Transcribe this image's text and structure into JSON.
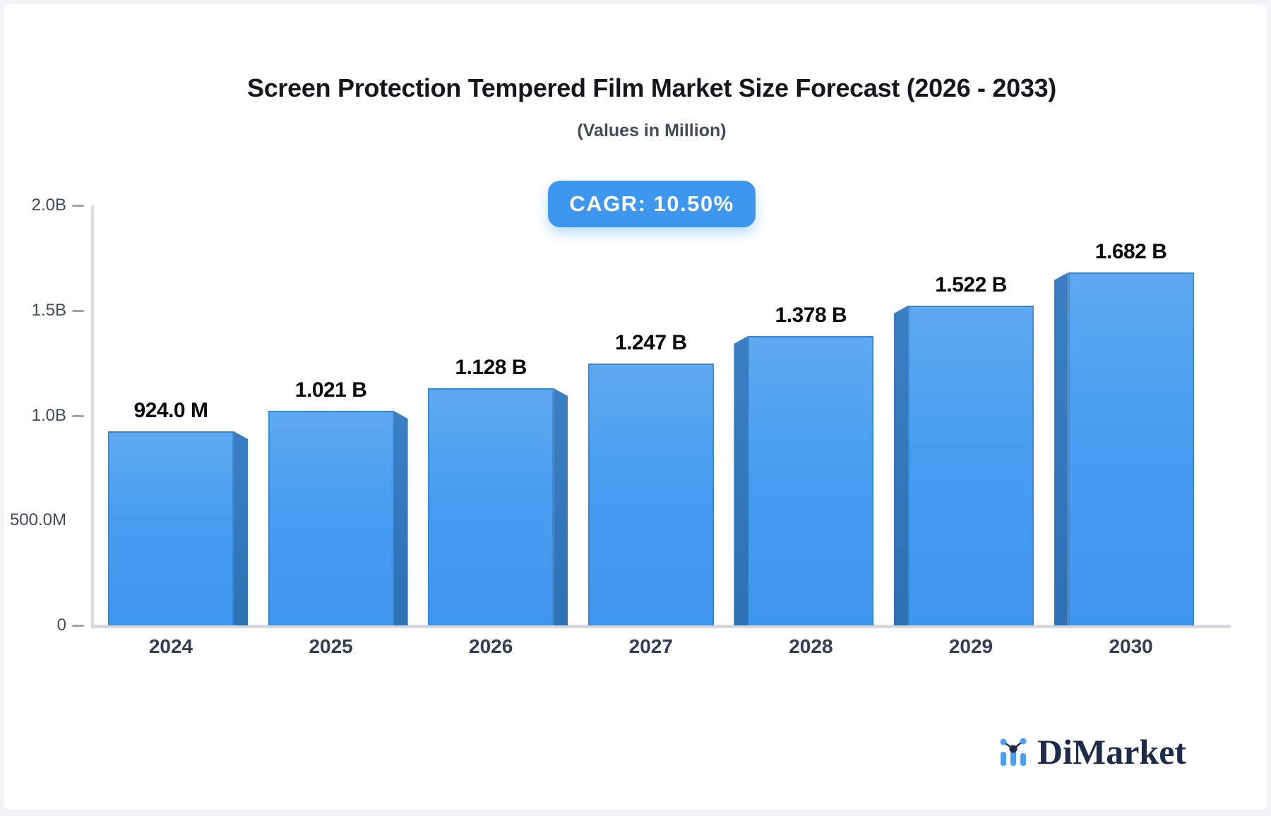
{
  "title": "Screen Protection Tempered Film Market Size Forecast (2026 - 2033)",
  "subtitle": "(Values in Million)",
  "badge": {
    "label": "CAGR: 10.50%"
  },
  "chart_data": {
    "type": "bar",
    "title": "Screen Protection Tempered Film Market Size Forecast (2026 - 2033)",
    "subtitle": "(Values in Million)",
    "cagr_percent": 10.5,
    "categories": [
      "2024",
      "2025",
      "2026",
      "2027",
      "2028",
      "2029",
      "2030"
    ],
    "values_millions": [
      924.0,
      1021,
      1128,
      1247,
      1378,
      1522,
      1682
    ],
    "bar_labels": [
      "924.0 M",
      "1.021 B",
      "1.128 B",
      "1.247 B",
      "1.378 B",
      "1.522 B",
      "1.682 B"
    ],
    "ylabel": "",
    "xlabel": "",
    "ylim": [
      0,
      2000
    ],
    "yticks": [
      {
        "label": "2.0B",
        "value_millions": 2000,
        "dash": true
      },
      {
        "label": "1.5B",
        "value_millions": 1500,
        "dash": true
      },
      {
        "label": "1.0B",
        "value_millions": 1000,
        "dash": true
      },
      {
        "label": "500.0M",
        "value_millions": 500,
        "dash": false
      },
      {
        "label": "0",
        "value_millions": 0,
        "dash": true
      }
    ],
    "grid": false,
    "legend": false,
    "bar_style": "3d-bevel",
    "colors": {
      "bar_face_top": "#5fa9f1",
      "bar_face_bottom": "#3e97ee",
      "bar_side": "#2d71b5",
      "axis": "#d8dbe1",
      "tick_label": "#414b5c",
      "value_label": "#07090c",
      "badge_background": "#3e97ee",
      "badge_text": "#ffffff"
    }
  },
  "logo": {
    "text": "DiMarket"
  }
}
